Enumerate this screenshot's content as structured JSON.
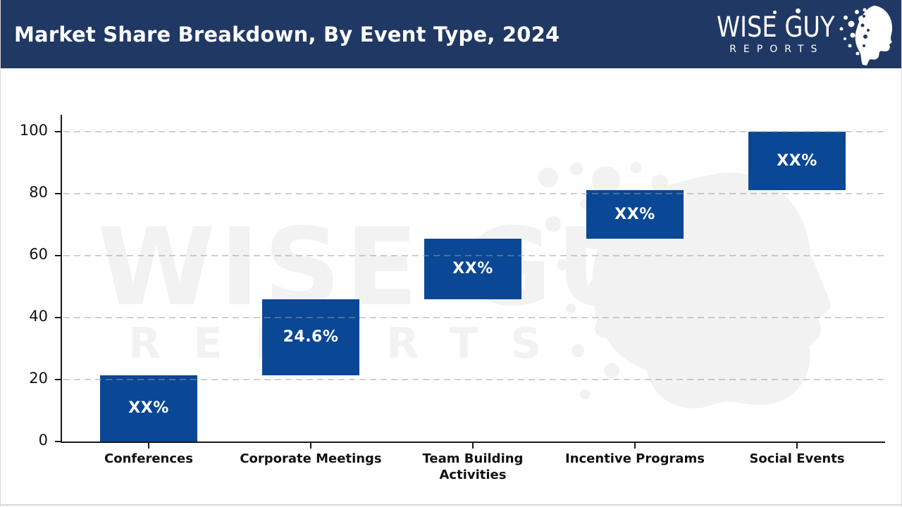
{
  "header": {
    "title": "Market Share Breakdown, By Event Type, 2024",
    "logo": {
      "name": "WISE GUY",
      "sub": "REPORTS"
    }
  },
  "watermark": {
    "line1": "WISE GUY",
    "line2": "REPORTS"
  },
  "chart_data": {
    "type": "bar",
    "subtype": "waterfall",
    "title": "Market Share Breakdown, By Event Type, 2024",
    "categories": [
      "Conferences",
      "Corporate Meetings",
      "Team Building\nActivities",
      "Incentive Programs",
      "Social Events"
    ],
    "segments": [
      {
        "category": "Conferences",
        "start": 0,
        "end": 21.4,
        "label": "XX%"
      },
      {
        "category": "Corporate Meetings",
        "start": 21.4,
        "end": 46.0,
        "label": "24.6%"
      },
      {
        "category": "Team Building Activities",
        "start": 46.0,
        "end": 65.5,
        "label": "XX%"
      },
      {
        "category": "Incentive Programs",
        "start": 65.5,
        "end": 81.1,
        "label": "XX%"
      },
      {
        "category": "Social Events",
        "start": 81.1,
        "end": 100,
        "label": "XX%"
      }
    ],
    "y_ticks": [
      0,
      20,
      40,
      60,
      80,
      100
    ],
    "ylim": [
      0,
      105
    ],
    "xlabel": "",
    "ylabel": "",
    "grid": "horizontal-dashed",
    "legend": "none"
  },
  "colors": {
    "header_bg": "#203864",
    "bar_fill": "#0a4795",
    "axis": "#1a1a1a",
    "tick_text": "#111111",
    "bar_label_text": "#ffffff",
    "watermark": "#f2f2f2",
    "frame_line": "#d7d7d7"
  }
}
